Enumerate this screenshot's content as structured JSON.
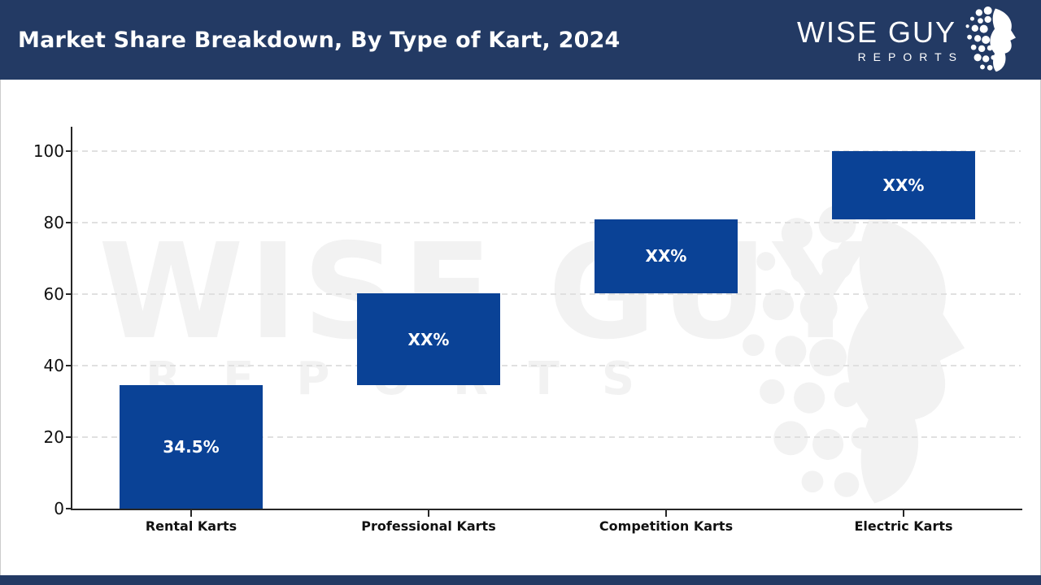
{
  "header": {
    "title": "Market Share Breakdown, By Type of Kart, 2024",
    "logo": {
      "line1": "WISE GUY",
      "line2": "REPORTS"
    }
  },
  "watermark": {
    "line1": "WISE GUY",
    "line2": "REPORTS"
  },
  "colors": {
    "header_bg": "#233A64",
    "bar": "#0A4296",
    "bar_label": "#FFFFFF",
    "grid": "#E0E0E0",
    "axis": "#262626",
    "tick_text": "#111111",
    "watermark": "#F2F2F2"
  },
  "chart_data": {
    "type": "bar",
    "subtype": "waterfall",
    "title": "Market Share Breakdown, By Type of Kart, 2024",
    "xlabel": "",
    "ylabel": "",
    "ylim": [
      0,
      100
    ],
    "yticks": [
      0,
      20,
      40,
      60,
      80,
      100
    ],
    "grid": "horizontal-dashed",
    "legend": "none",
    "categories": [
      "Rental Karts",
      "Professional Karts",
      "Competition Karts",
      "Electric Karts"
    ],
    "segments": [
      {
        "category": "Rental Karts",
        "start": 0,
        "end": 34.5,
        "label": "34.5%"
      },
      {
        "category": "Professional Karts",
        "start": 34.5,
        "end": 60.2,
        "label": "XX%"
      },
      {
        "category": "Competition Karts",
        "start": 60.2,
        "end": 81,
        "label": "XX%"
      },
      {
        "category": "Electric Karts",
        "start": 81,
        "end": 100,
        "label": "XX%"
      }
    ]
  }
}
